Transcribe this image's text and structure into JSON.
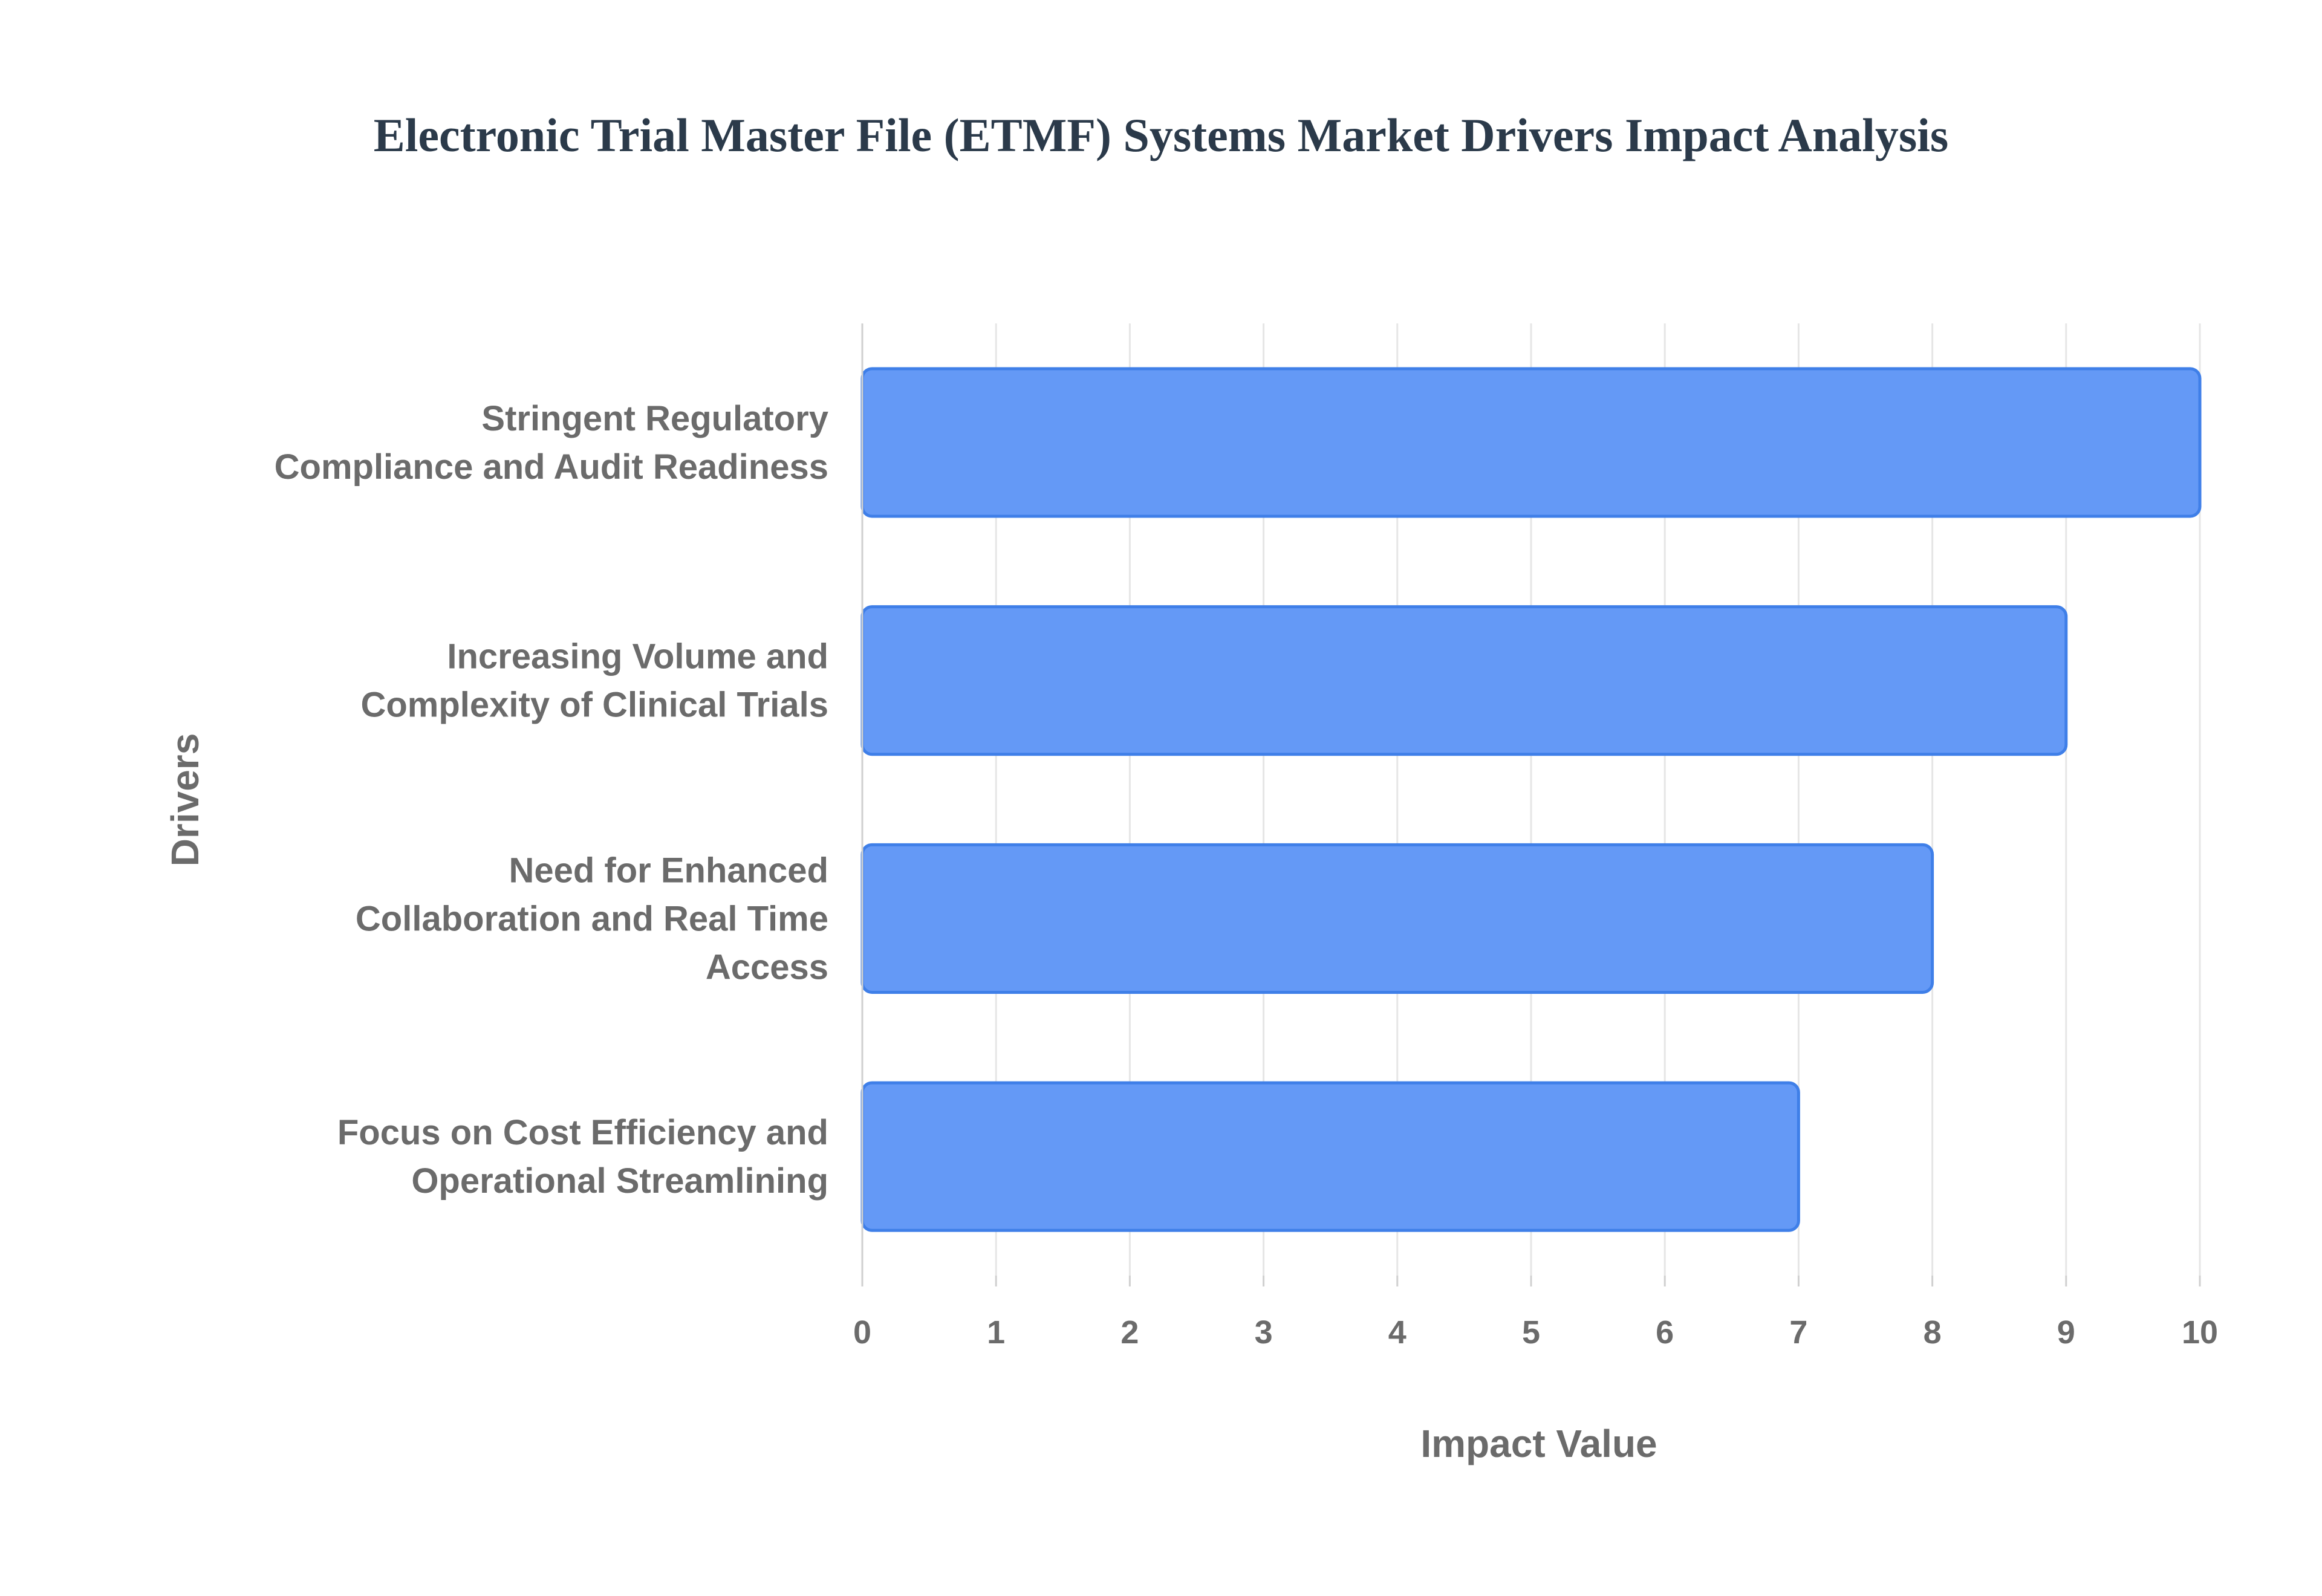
{
  "chart_data": {
    "type": "bar",
    "orientation": "horizontal",
    "title": "Electronic Trial Master File (ETMF) Systems Market Drivers Impact Analysis",
    "xlabel": "Impact Value",
    "ylabel": "Drivers",
    "xlim": [
      0,
      10
    ],
    "xticks": [
      "0",
      "1",
      "2",
      "3",
      "4",
      "5",
      "6",
      "7",
      "8",
      "9",
      "10"
    ],
    "grid": true,
    "categories": [
      [
        "Stringent Regulatory",
        "Compliance and Audit Readiness"
      ],
      [
        "Increasing Volume and",
        "Complexity of Clinical Trials"
      ],
      [
        "Need for Enhanced",
        "Collaboration and Real Time",
        "Access"
      ],
      [
        "Focus on Cost Efficiency and",
        "Operational Streamlining"
      ]
    ],
    "values": [
      10,
      9,
      8,
      7
    ],
    "bar_color": "#6499f6",
    "bar_border_color": "#3f7fe8"
  }
}
